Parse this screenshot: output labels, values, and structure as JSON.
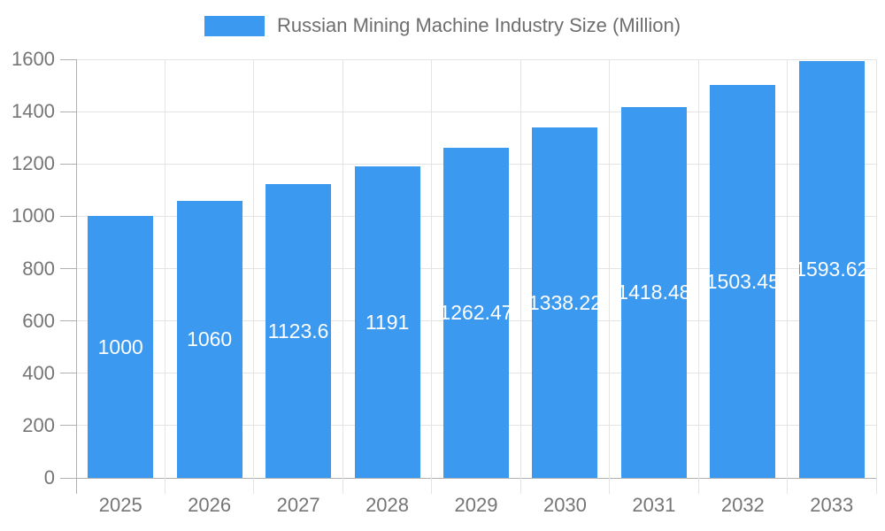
{
  "legend": {
    "label": "Russian Mining Machine Industry Size (Million)"
  },
  "chart_data": {
    "type": "bar",
    "title": "Russian Mining Machine Industry Size (Million)",
    "categories": [
      "2025",
      "2026",
      "2027",
      "2028",
      "2029",
      "2030",
      "2031",
      "2032",
      "2033"
    ],
    "values": [
      1000,
      1060,
      1123.6,
      1191,
      1262.47,
      1338.22,
      1418.48,
      1503.45,
      1593.62
    ],
    "bar_labels": [
      "1000",
      "1060",
      "1123.6",
      "1191",
      "1262.47",
      "1338.22",
      "1418.48",
      "1503.45",
      "1593.62"
    ],
    "xlabel": "",
    "ylabel": "",
    "ylim": [
      0,
      1600
    ],
    "yticks": [
      0,
      200,
      400,
      600,
      800,
      1000,
      1200,
      1400,
      1600
    ],
    "grid": true,
    "legend_position": "top-center",
    "colors": {
      "bar": "#3B99F0",
      "grid": "#E4E4E4",
      "axis": "#B0B0B0",
      "text": "#757575",
      "bar_label": "#FFFFFF"
    }
  }
}
